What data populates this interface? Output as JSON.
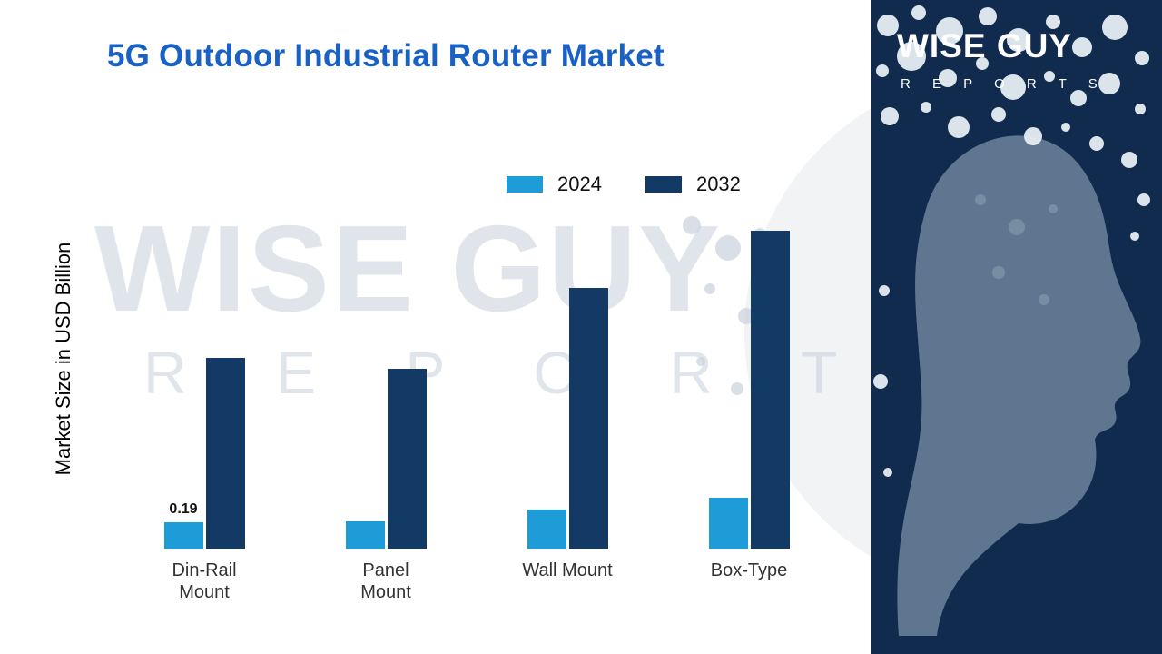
{
  "title": "5G Outdoor Industrial Router Market",
  "brand": {
    "name_line1": "WISE GUY",
    "name_line2": "R E P O R T S",
    "panel_color": "#112B4E"
  },
  "watermark": {
    "line1": "WISE GUY",
    "line2": "R E P O R T S"
  },
  "y_axis_label": "Market Size in USD Billion",
  "legend": {
    "items": [
      {
        "label": "2024",
        "color": "#1E9CD7"
      },
      {
        "label": "2032",
        "color": "#123A64"
      }
    ]
  },
  "chart_data": {
    "type": "bar",
    "title": "5G Outdoor Industrial Router Market",
    "ylabel": "Market Size in USD Billion",
    "unit": "USD Billion",
    "categories": [
      "Din-Rail Mount",
      "Panel Mount",
      "Wall Mount",
      "Box-Type"
    ],
    "category_lines": [
      [
        "Din-Rail",
        "Mount"
      ],
      [
        "Panel",
        "Mount"
      ],
      [
        "Wall Mount"
      ],
      [
        "Box-Type"
      ]
    ],
    "series": [
      {
        "name": "2024",
        "color": "#1E9CD7",
        "values": [
          0.19,
          0.2,
          0.28,
          0.37
        ],
        "value_labels": [
          "0.19",
          "",
          "",
          ""
        ]
      },
      {
        "name": "2032",
        "color": "#123A64",
        "values": [
          1.38,
          1.3,
          1.89,
          2.3
        ],
        "value_labels": [
          "",
          "",
          "",
          ""
        ]
      }
    ],
    "ylim": [
      0,
      2.5
    ],
    "grid": false,
    "legend_position": "top-right"
  }
}
